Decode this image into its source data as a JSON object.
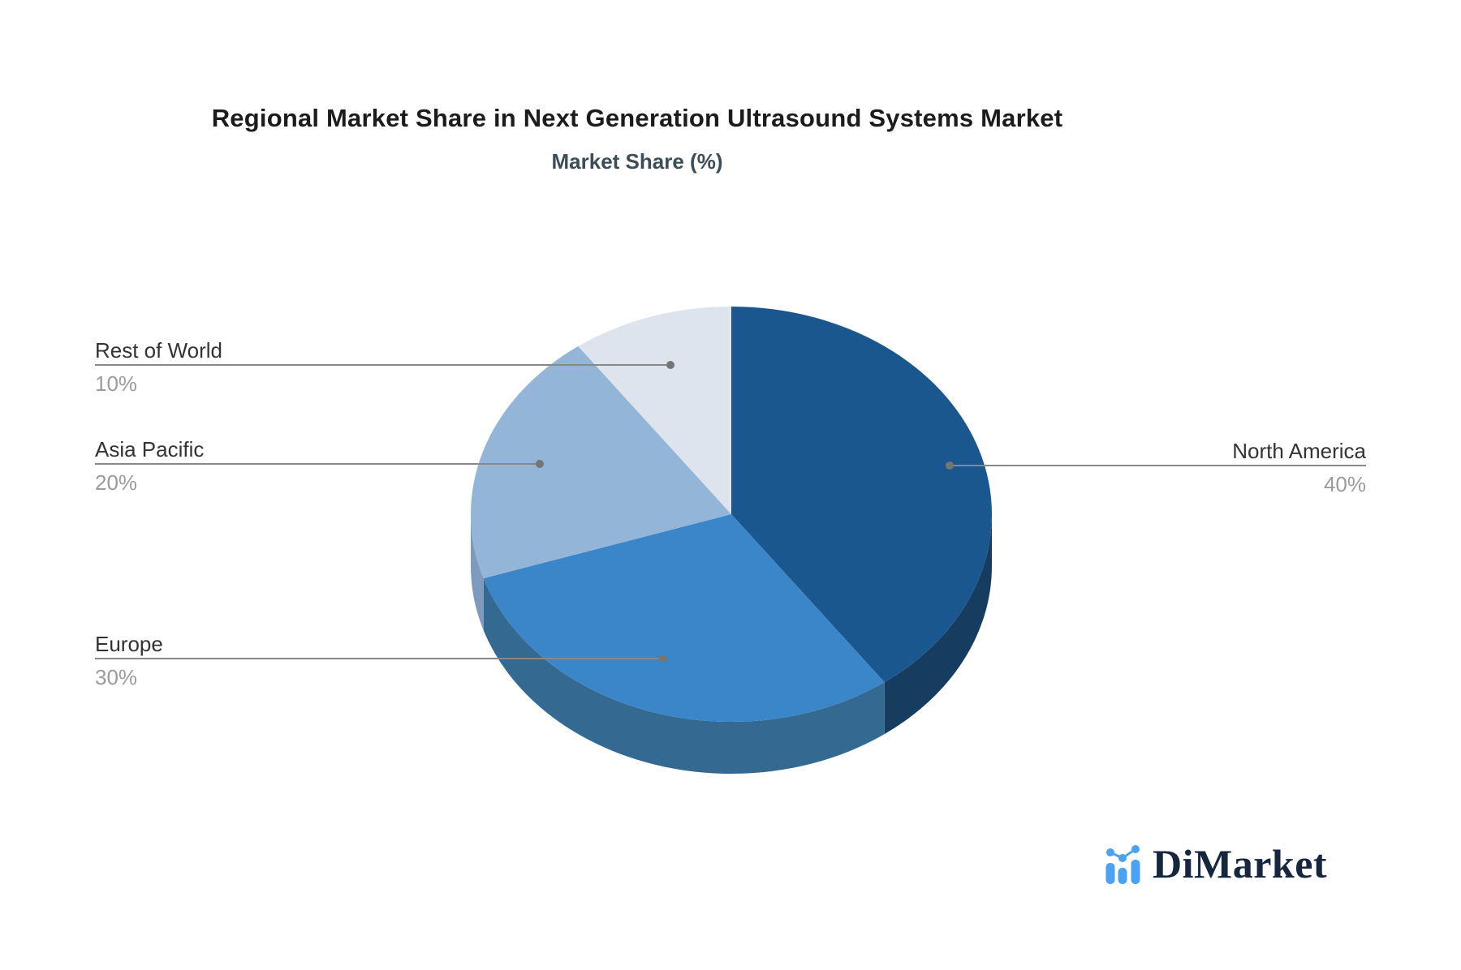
{
  "title": "Regional Market Share in Next Generation Ultrasound Systems Market",
  "subtitle": "Market Share (%)",
  "chart_data": {
    "type": "pie",
    "style": "3d",
    "title": "Regional Market Share in Next Generation Ultrasound Systems Market",
    "subtitle": "Market Share (%)",
    "unit": "%",
    "labels": [
      "North America",
      "Europe",
      "Asia Pacific",
      "Rest of World"
    ],
    "values": [
      40,
      30,
      20,
      10
    ],
    "display_values": [
      "40%",
      "30%",
      "20%",
      "10%"
    ],
    "colors": [
      "#1B578F",
      "#3A86C8",
      "#93B5D8",
      "#DEE4EE"
    ],
    "side_colors": [
      "#163C60",
      "#346A92",
      "#7E9ABC",
      "#C9D2DF"
    ],
    "start_angle_deg": 0,
    "direction": "clockwise",
    "legend_position": "callout-lines",
    "grid": false
  },
  "callouts": {
    "north_america": {
      "label": "North America",
      "value": "40%"
    },
    "europe": {
      "label": "Europe",
      "value": "30%"
    },
    "asia_pacific": {
      "label": "Asia Pacific",
      "value": "20%"
    },
    "rest_of_world": {
      "label": "Rest of World",
      "value": "10%"
    }
  },
  "brand": {
    "name": "DiMarket",
    "accent_color": "#4BA1F2",
    "text_color": "#17263F"
  },
  "colors": {
    "leader_line": "#888888",
    "label_text": "#333333",
    "value_text": "#9B9B9B",
    "title_text": "#1C1C1C",
    "subtitle_text": "#3D4D57"
  }
}
